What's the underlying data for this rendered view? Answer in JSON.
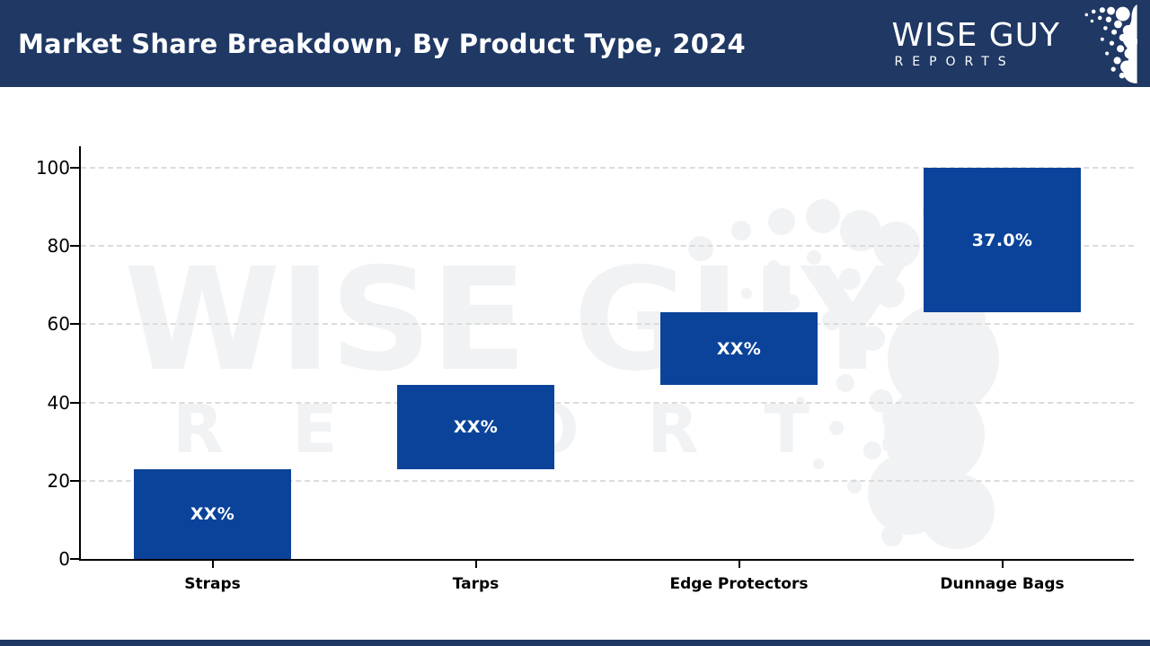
{
  "header": {
    "title": "Market Share Breakdown, By Product Type, 2024",
    "logo": {
      "line1": "WISE GUY",
      "line2": "REPORTS"
    }
  },
  "watermark": {
    "line1": "WISE GUY",
    "line2": "REPORTS"
  },
  "chart_data": {
    "type": "bar",
    "subtype": "waterfall",
    "title": "Market Share Breakdown, By Product Type, 2024",
    "xlabel": "",
    "ylabel": "",
    "categories": [
      "Straps",
      "Tarps",
      "Edge Protectors",
      "Dunnage Bags"
    ],
    "segments": [
      {
        "category": "Straps",
        "start": 0,
        "end": 23,
        "label": "XX%"
      },
      {
        "category": "Tarps",
        "start": 23,
        "end": 44.5,
        "label": "XX%"
      },
      {
        "category": "Edge Protectors",
        "start": 44.5,
        "end": 63,
        "label": "XX%"
      },
      {
        "category": "Dunnage Bags",
        "start": 63,
        "end": 100,
        "label": "37.0%"
      }
    ],
    "yticks": [
      0,
      20,
      40,
      60,
      80,
      100
    ],
    "ylim": [
      0,
      105.5
    ],
    "grid": "horizontal-dashed",
    "legend": "none"
  },
  "colors": {
    "header_bg": "#1f3864",
    "bar": "#0a4399",
    "grid": "#dcdcdc",
    "axis": "#000000",
    "watermark": "#f1f2f4",
    "bar_label": "#ffffff"
  }
}
